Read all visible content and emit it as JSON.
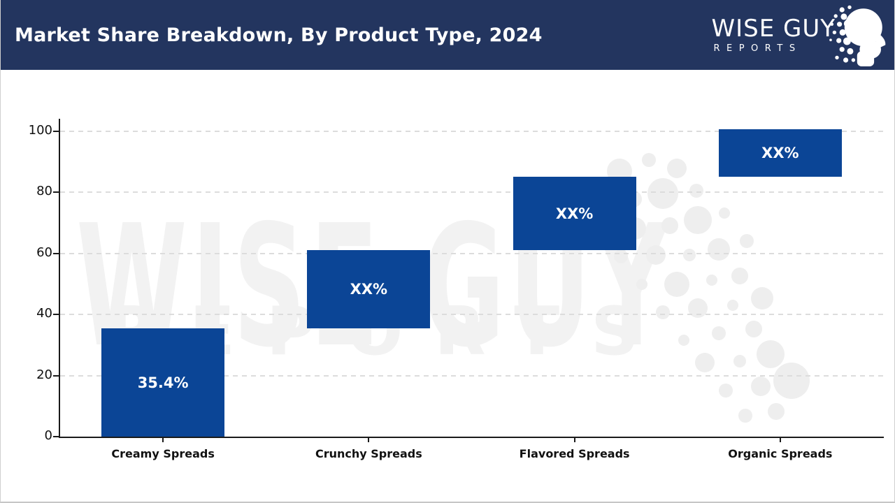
{
  "header": {
    "title": "Market Share Breakdown, By Product Type, 2024",
    "logo_line1": "WISE GUY",
    "logo_line2": "REPORTS"
  },
  "watermark": {
    "line1": "WISE GUY",
    "line2": "REPORTS"
  },
  "chart_data": {
    "type": "bar",
    "variant": "waterfall-floating-bars",
    "title": "Market Share Breakdown, By Product Type, 2024",
    "categories": [
      "Creamy Spreads",
      "Crunchy Spreads",
      "Flavored Spreads",
      "Organic Spreads"
    ],
    "bars": [
      {
        "category": "Creamy Spreads",
        "start": 0,
        "end": 35.4,
        "label": "35.4%"
      },
      {
        "category": "Crunchy Spreads",
        "start": 35.4,
        "end": 61.0,
        "label": "XX%"
      },
      {
        "category": "Flavored Spreads",
        "start": 61.0,
        "end": 85.0,
        "label": "XX%"
      },
      {
        "category": "Organic Spreads",
        "start": 85.0,
        "end": 100.5,
        "label": "XX%"
      }
    ],
    "yticks": [
      0,
      20,
      40,
      60,
      80,
      100
    ],
    "ylim": [
      0,
      104
    ],
    "xlabel": "",
    "ylabel": "",
    "grid": "horizontal-dashed",
    "legend": "none",
    "bar_color": "#0b4596",
    "bar_label_color": "#ffffff",
    "axis_color": "#1a1a1a",
    "header_color": "#23355f",
    "watermark_color": "#f2f2f2"
  }
}
